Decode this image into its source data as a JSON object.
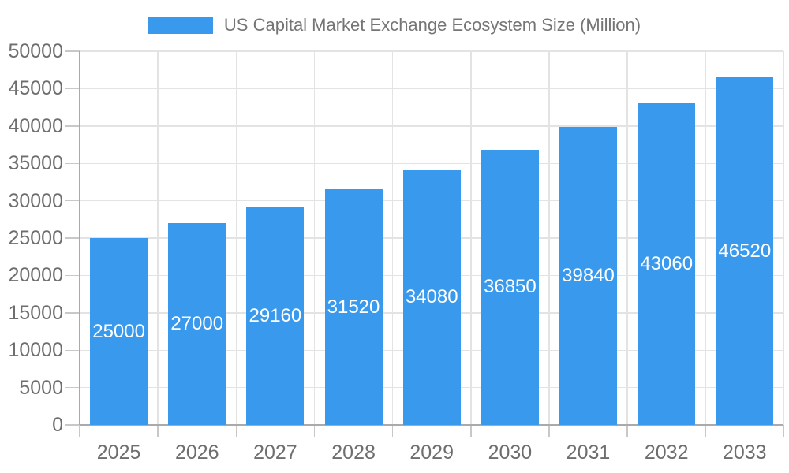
{
  "chart_data": {
    "type": "bar",
    "title": "US Capital Market Exchange Ecosystem Size (Million)",
    "legend_position": "top",
    "categories": [
      "2025",
      "2026",
      "2027",
      "2028",
      "2029",
      "2030",
      "2031",
      "2032",
      "2033"
    ],
    "series": [
      {
        "name": "US Capital Market Exchange Ecosystem Size (Million)",
        "values": [
          25000,
          27000,
          29160,
          31520,
          34080,
          36850,
          39840,
          43060,
          46520
        ]
      }
    ],
    "data_labels": {
      "visible": true,
      "position": "inside-center"
    },
    "xlabel": "",
    "ylabel": "",
    "ylim": [
      0,
      50000
    ],
    "ytick_step": 5000,
    "yticks": [
      0,
      5000,
      10000,
      15000,
      20000,
      25000,
      30000,
      35000,
      40000,
      45000,
      50000
    ],
    "grid": true
  },
  "colors": {
    "bar": "#3999ED",
    "grid_line": "#e3e3e3",
    "tick_line": "#c8c8c8",
    "axis_line": "#aaaaaa",
    "tick_label_text": "#6e6e6e",
    "legend_text": "#757575",
    "bar_label_text": "#ffffff",
    "background": "#ffffff"
  }
}
